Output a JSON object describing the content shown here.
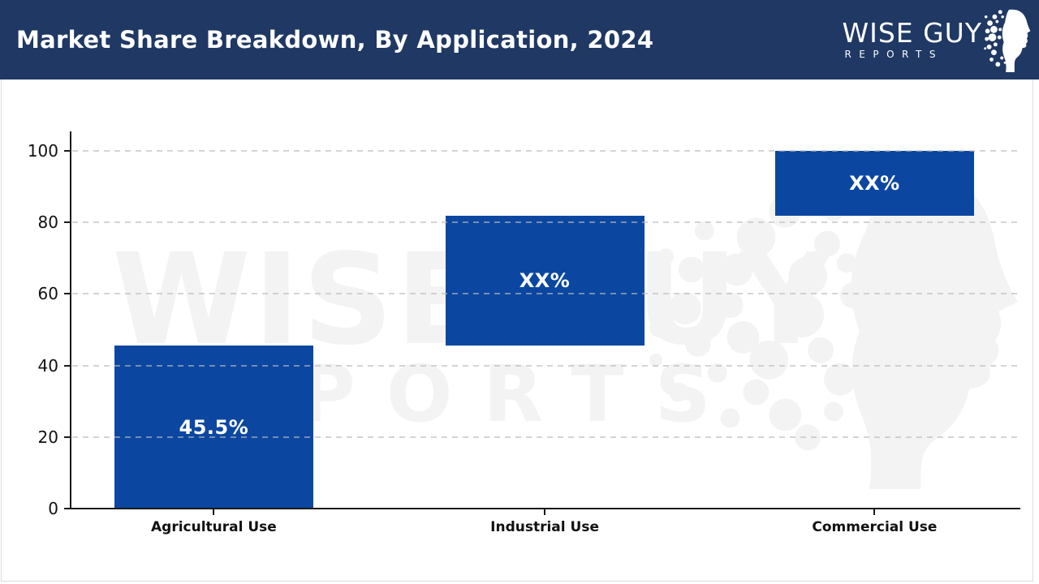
{
  "header": {
    "title": "Market Share Breakdown, By Application, 2024",
    "background_color": "#1f3864",
    "logo": {
      "wordmark": "WISE GUY",
      "subtext": "REPORTS",
      "head_icon": "dotted-head-icon"
    }
  },
  "watermark": {
    "line1": "WISE GUY",
    "line2": "REPORTS",
    "head_icon": "dotted-head-watermark-icon",
    "color": "#f3f3f3"
  },
  "chart_data": {
    "type": "bar",
    "subtype": "waterfall",
    "title": "Market Share Breakdown, By Application, 2024",
    "categories": [
      "Agricultural Use",
      "Industrial Use",
      "Commercial Use"
    ],
    "segments": [
      {
        "category": "Agricultural Use",
        "start": 0,
        "end": 45.5,
        "label": "45.5%"
      },
      {
        "category": "Industrial Use",
        "start": 45.5,
        "end": 81.8,
        "label": "XX%"
      },
      {
        "category": "Commercial Use",
        "start": 81.8,
        "end": 100,
        "label": "XX%"
      }
    ],
    "yticks": [
      0,
      20,
      40,
      60,
      80,
      100
    ],
    "ylim": [
      0,
      105
    ],
    "xlabel": "",
    "ylabel": "",
    "grid": "horizontal-dashed",
    "grid_on": true,
    "legend": "none",
    "bar_color": "#0b47a1",
    "bar_label_color": "#ffffff",
    "grid_color": "#d9d9d9",
    "axis_color": "#1a1a1a",
    "tick_label_color": "#111111"
  }
}
